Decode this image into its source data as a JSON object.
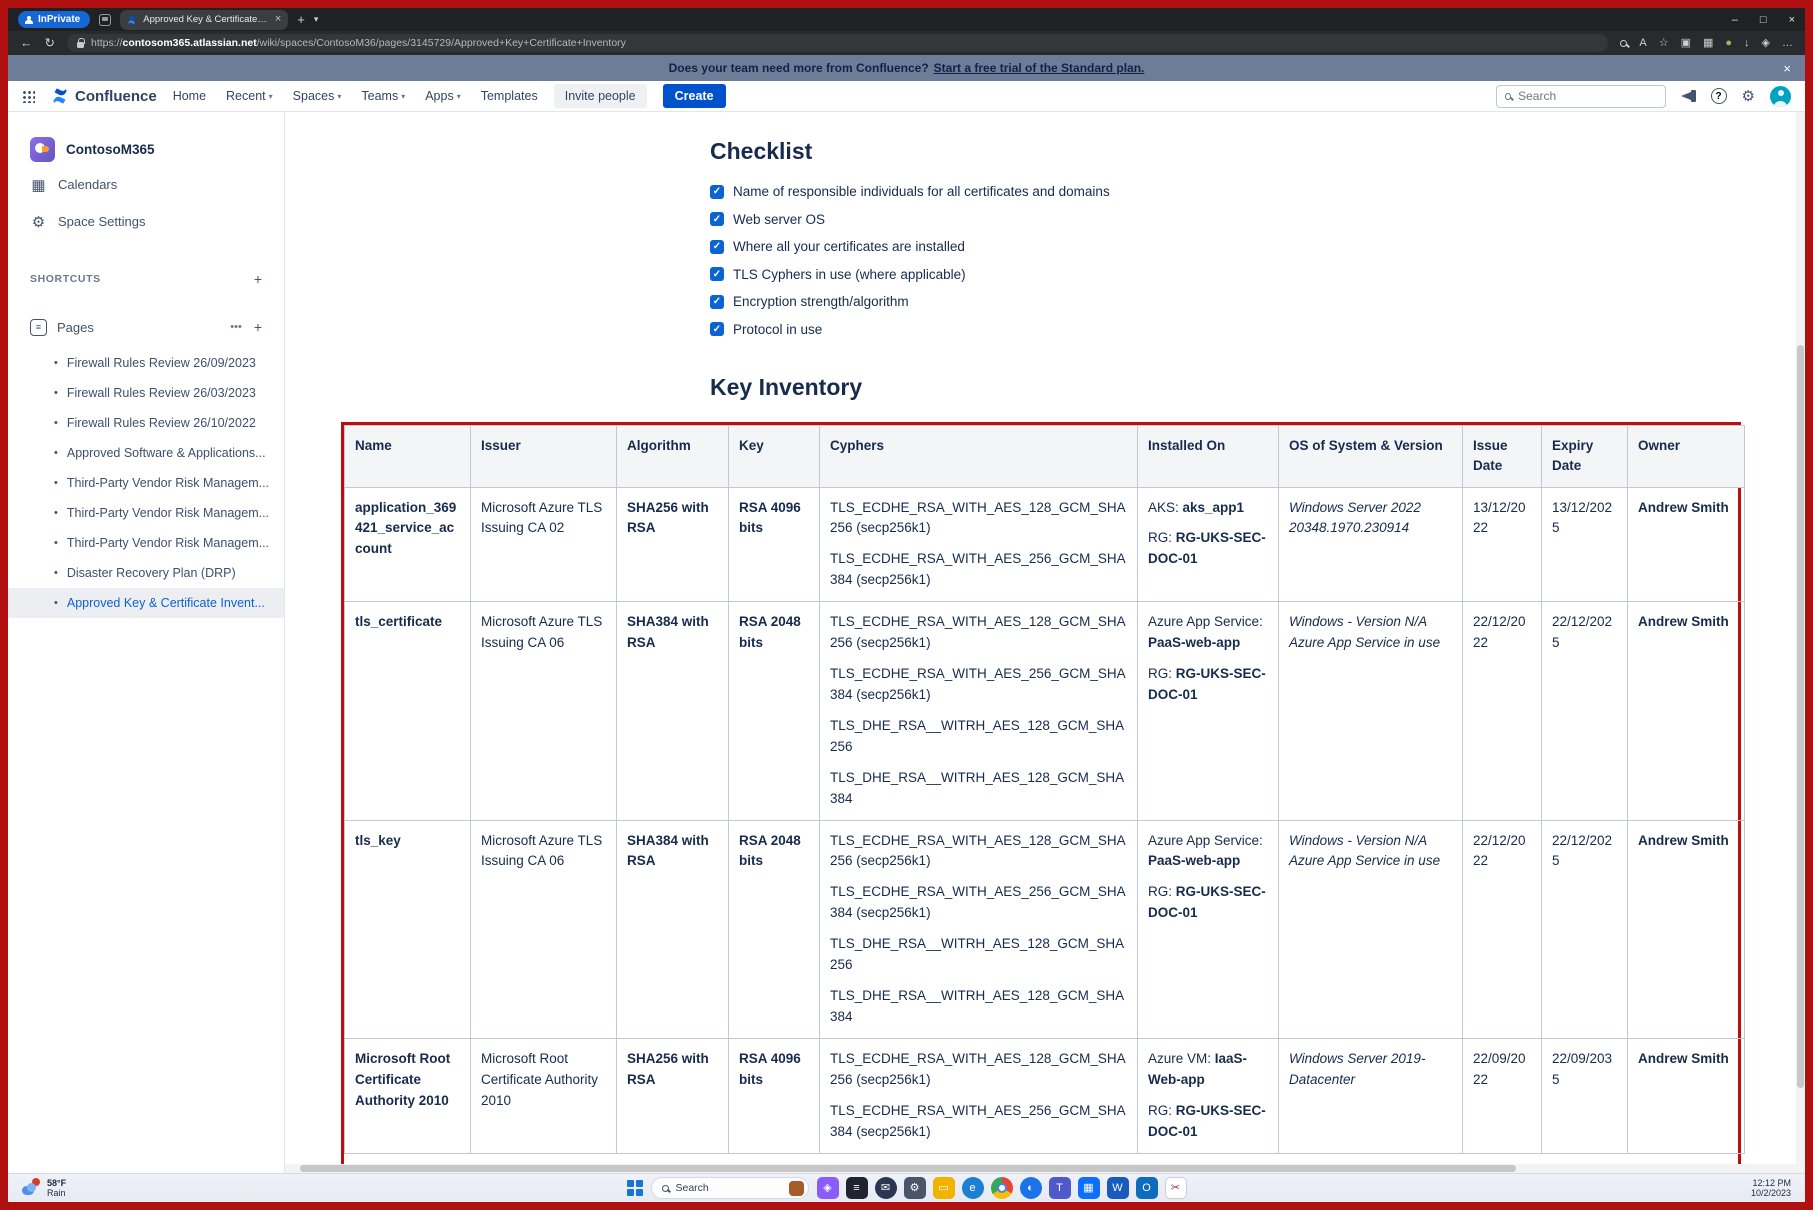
{
  "icons": {
    "close": "×",
    "plus": "+",
    "caret_down": "▾",
    "back": "←",
    "refresh": "↻",
    "more": "…",
    "minimize": "–",
    "maximize": "□",
    "check": "✓",
    "bullet": "•",
    "ellipsis_h": "•••",
    "question": "?",
    "gear": "⚙",
    "calendar": "▦",
    "pages_glyph": "≡"
  },
  "browser": {
    "inprivate_label": "InPrivate",
    "tab_title": "Approved Key & Certificate Inventory",
    "url_prefix": "https://",
    "url_domain": "contosom365.atlassian.net",
    "url_path": "/wiki/spaces/ContosoM36/pages/3145729/Approved+Key+Certificate+Inventory",
    "url_icons": [
      {
        "name": "zoom-in-icon",
        "css": "mag"
      },
      {
        "name": "read-aloud-icon",
        "glyph": "A"
      },
      {
        "name": "favorites-star-icon",
        "glyph": "☆"
      },
      {
        "name": "split-screen-icon",
        "glyph": "▣"
      },
      {
        "name": "collections-icon",
        "glyph": "▦"
      },
      {
        "name": "extension-leaf-icon",
        "glyph": "●",
        "color": "#8fbf4d"
      },
      {
        "name": "downloads-icon",
        "glyph": "↓"
      },
      {
        "name": "extensions-icon",
        "glyph": "◈"
      },
      {
        "name": "more-menu-icon",
        "glyph": "…"
      }
    ]
  },
  "banner": {
    "text": "Does your team need more from Confluence?",
    "link": "Start a free trial of the Standard plan."
  },
  "nav": {
    "brand": "Confluence",
    "items": [
      {
        "label": "Home",
        "caret": false
      },
      {
        "label": "Recent",
        "caret": true
      },
      {
        "label": "Spaces",
        "caret": true
      },
      {
        "label": "Teams",
        "caret": true
      },
      {
        "label": "Apps",
        "caret": true
      },
      {
        "label": "Templates",
        "caret": false
      }
    ],
    "invite_button": "Invite people",
    "create_button": "Create",
    "search_placeholder": "Search"
  },
  "sidebar": {
    "space_name": "ContosoM365",
    "items": [
      {
        "label": "Calendars"
      },
      {
        "label": "Space Settings"
      }
    ],
    "shortcuts_label": "SHORTCUTS",
    "pages_label": "Pages",
    "pages": [
      {
        "label": "Firewall Rules Review 26/09/2023",
        "selected": false
      },
      {
        "label": "Firewall Rules Review 26/03/2023",
        "selected": false
      },
      {
        "label": "Firewall Rules Review 26/10/2022",
        "selected": false
      },
      {
        "label": "Approved Software & Applications...",
        "selected": false
      },
      {
        "label": "Third-Party Vendor Risk Managem...",
        "selected": false
      },
      {
        "label": "Third-Party Vendor Risk Managem...",
        "selected": false
      },
      {
        "label": "Third-Party Vendor Risk Managem...",
        "selected": false
      },
      {
        "label": "Disaster Recovery Plan (DRP)",
        "selected": false
      },
      {
        "label": "Approved Key & Certificate Invent...",
        "selected": true
      }
    ]
  },
  "content": {
    "checklist_title": "Checklist",
    "checklist_items": [
      "Name of responsible individuals for all certificates and domains",
      "Web server OS",
      "Where all your certificates are installed",
      "TLS Cyphers in use (where applicable)",
      "Encryption strength/algorithm",
      "Protocol in use"
    ],
    "table_title": "Key Inventory",
    "table": {
      "headers": [
        "Name",
        "Issuer",
        "Algorithm",
        "Key",
        "Cyphers",
        "Installed On",
        "OS of System & Version",
        "Issue Date",
        "Expiry Date",
        "Owner"
      ],
      "rows": [
        {
          "name": "application_369421_service_account",
          "issuer": "Microsoft Azure TLS Issuing CA 02",
          "algorithm": "SHA256 with RSA",
          "key": "RSA 4096 bits",
          "cyphers": [
            "TLS_ECDHE_RSA_WITH_AES_128_GCM_SHA256 (secp256k1)",
            "TLS_ECDHE_RSA_WITH_AES_256_GCM_SHA384 (secp256k1)"
          ],
          "installed_on": [
            [
              {
                "t": "AKS: "
              },
              {
                "t": "aks_app1",
                "b": true
              }
            ],
            [
              {
                "t": "RG: "
              },
              {
                "t": "RG-UKS-SEC-DOC-01",
                "b": true
              }
            ]
          ],
          "os": "Windows Server 2022 20348.1970.230914",
          "issue_date": "13/12/2022",
          "expiry_date": "13/12/2025",
          "owner": "Andrew Smith"
        },
        {
          "name": "tls_certificate",
          "issuer": "Microsoft Azure TLS Issuing CA 06",
          "algorithm": "SHA384 with RSA",
          "key": "RSA 2048 bits",
          "cyphers": [
            "TLS_ECDHE_RSA_WITH_AES_128_GCM_SHA256 (secp256k1)",
            "TLS_ECDHE_RSA_WITH_AES_256_GCM_SHA384 (secp256k1)",
            "TLS_DHE_RSA__WITRH_AES_128_GCM_SHA256",
            "TLS_DHE_RSA__WITRH_AES_128_GCM_SHA384"
          ],
          "installed_on": [
            [
              {
                "t": "Azure App Service: "
              },
              {
                "t": "PaaS-web-app",
                "b": true
              }
            ],
            [
              {
                "t": "RG: "
              },
              {
                "t": "RG-UKS-SEC-DOC-01",
                "b": true
              }
            ]
          ],
          "os": "Windows - Version N/A Azure App Service in use",
          "issue_date": "22/12/2022",
          "expiry_date": "22/12/2025",
          "owner": "Andrew Smith"
        },
        {
          "name": "tls_key",
          "issuer": "Microsoft Azure TLS Issuing CA 06",
          "algorithm": "SHA384 with RSA",
          "key": "RSA 2048 bits",
          "cyphers": [
            "TLS_ECDHE_RSA_WITH_AES_128_GCM_SHA256 (secp256k1)",
            "TLS_ECDHE_RSA_WITH_AES_256_GCM_SHA384 (secp256k1)",
            "TLS_DHE_RSA__WITRH_AES_128_GCM_SHA256",
            "TLS_DHE_RSA__WITRH_AES_128_GCM_SHA384"
          ],
          "installed_on": [
            [
              {
                "t": "Azure App Service: "
              },
              {
                "t": "PaaS-web-app",
                "b": true
              }
            ],
            [
              {
                "t": "RG: "
              },
              {
                "t": "RG-UKS-SEC-DOC-01",
                "b": true
              }
            ]
          ],
          "os": "Windows - Version N/A Azure App Service in use",
          "issue_date": "22/12/2022",
          "expiry_date": "22/12/2025",
          "owner": "Andrew Smith"
        },
        {
          "name": "Microsoft Root Certificate Authority 2010",
          "issuer": "Microsoft Root Certificate Authority 2010",
          "algorithm": "SHA256 with RSA",
          "key": "RSA 4096 bits",
          "cyphers": [
            "TLS_ECDHE_RSA_WITH_AES_128_GCM_SHA256 (secp256k1)",
            "TLS_ECDHE_RSA_WITH_AES_256_GCM_SHA384 (secp256k1)"
          ],
          "installed_on": [
            [
              {
                "t": "Azure VM: "
              },
              {
                "t": "IaaS-Web-app",
                "b": true
              }
            ],
            [
              {
                "t": "RG: "
              },
              {
                "t": "RG-UKS-SEC-DOC-01",
                "b": true
              }
            ]
          ],
          "os": "Windows Server 2019-Datacenter",
          "issue_date": "22/09/2022",
          "expiry_date": "22/09/2035",
          "owner": "Andrew Smith"
        }
      ]
    }
  },
  "taskbar": {
    "weather_temp": "58°F",
    "weather_cond": "Rain",
    "search_label": "Search",
    "time": "12:12 PM",
    "date": "10/2/2023",
    "apps": [
      {
        "name": "pinned-space-app-icon",
        "glyph": "◈",
        "bg": "#8b5cf6"
      },
      {
        "name": "notepad-icon",
        "glyph": "≡",
        "bg": "#1f2430"
      },
      {
        "name": "chat-icon",
        "glyph": "✉",
        "bg": "#2b3650",
        "round": true
      },
      {
        "name": "settings-icon",
        "glyph": "⚙",
        "bg": "#4a5568"
      },
      {
        "name": "file-explorer-icon",
        "glyph": "▭",
        "bg": "#f2b200"
      },
      {
        "name": "edge-icon",
        "glyph": "e",
        "bg": "#1b7fd4",
        "round": true
      },
      {
        "name": "chrome-icon",
        "special": "chrome"
      },
      {
        "name": "copilot-icon",
        "glyph": "◐",
        "bg": "#1a73e8",
        "round": true
      },
      {
        "name": "teams-icon",
        "glyph": "T",
        "bg": "#5059c9"
      },
      {
        "name": "store-icon",
        "glyph": "▦",
        "bg": "#0d6efd"
      },
      {
        "name": "word-icon",
        "glyph": "W",
        "bg": "#185abd"
      },
      {
        "name": "outlook-icon",
        "glyph": "O",
        "bg": "#0f6cbd"
      },
      {
        "name": "snipping-tool-icon",
        "glyph": "✂",
        "active": true,
        "fg": "#8a2a52"
      }
    ]
  }
}
